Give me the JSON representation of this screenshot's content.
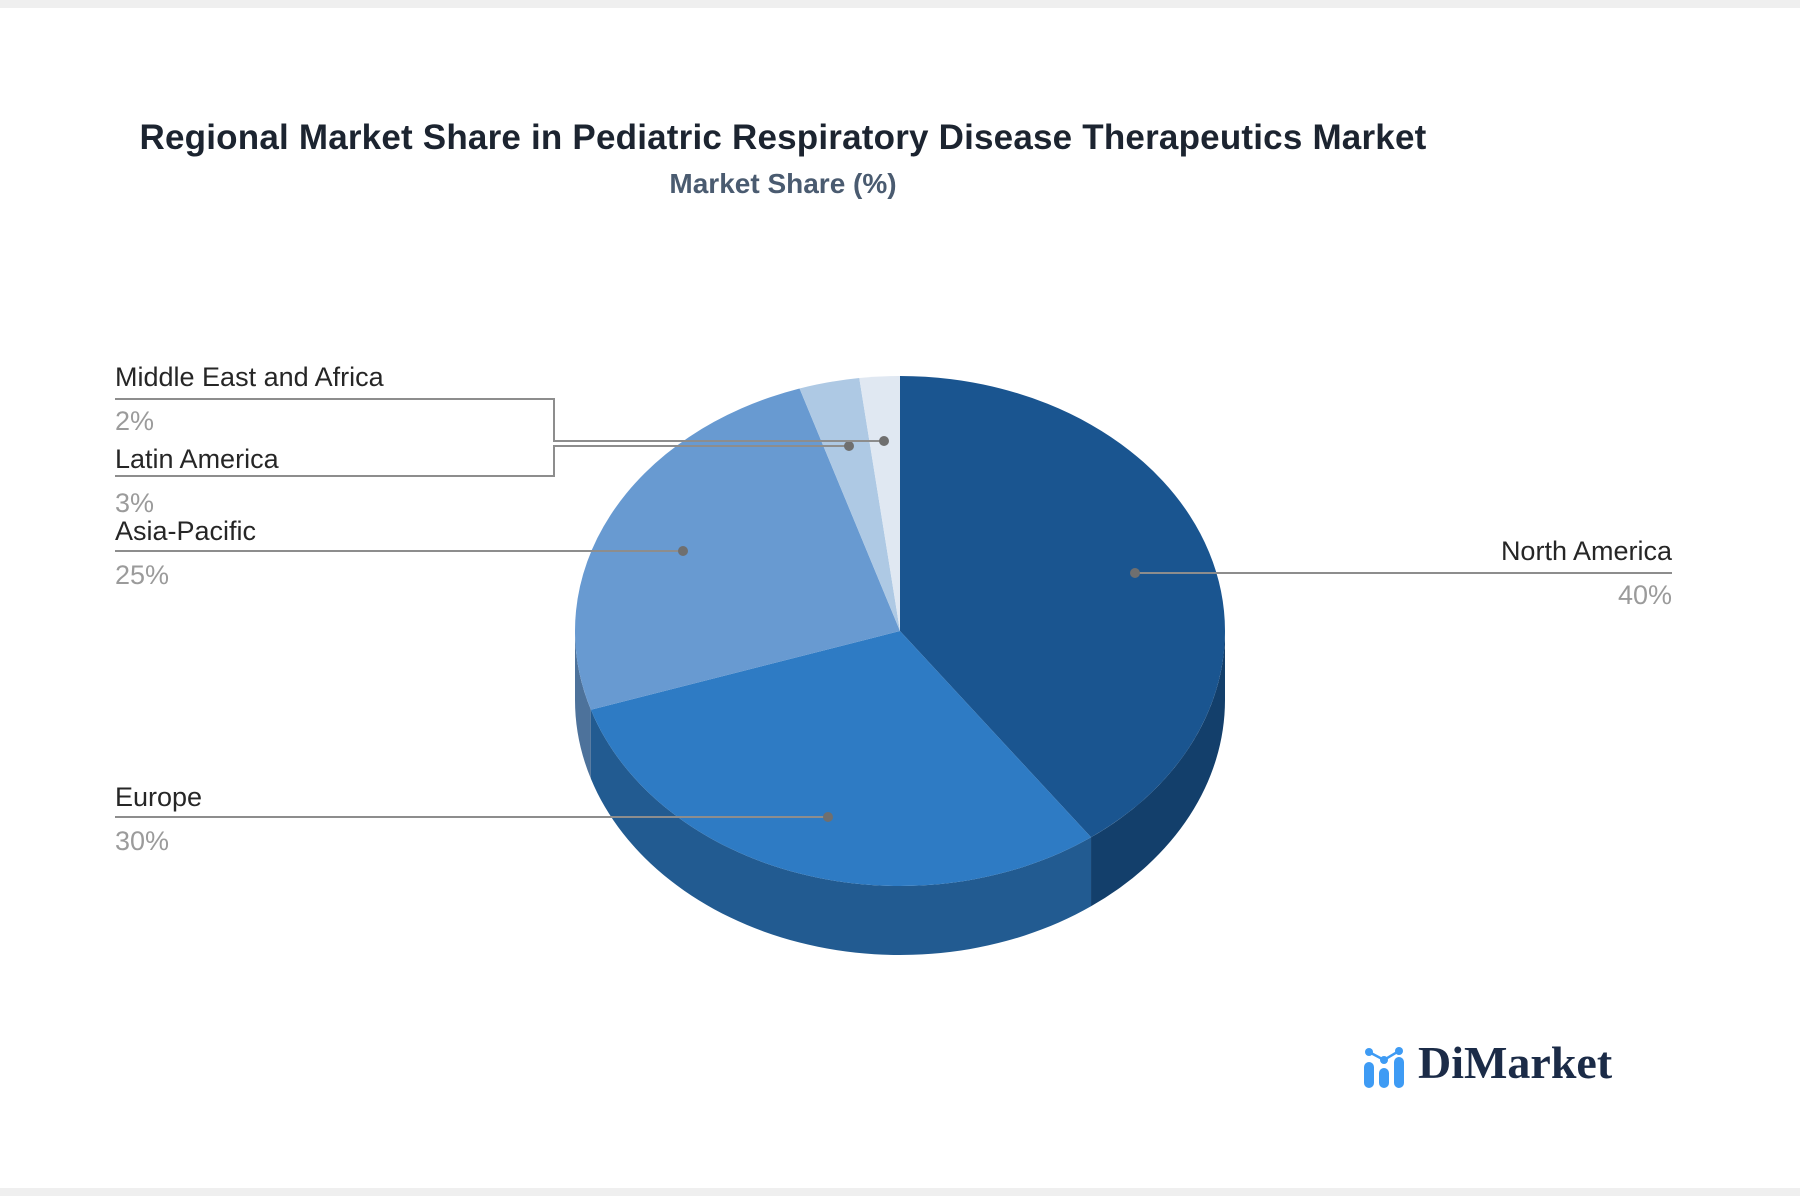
{
  "chart_data": {
    "type": "pie",
    "style": "3d-pie",
    "title": "Regional Market Share in Pediatric Respiratory Disease Therapeutics Market",
    "subtitle": "Market Share (%)",
    "unit": "%",
    "start_angle_deg": 0,
    "direction": "clockwise",
    "legend_position": "none",
    "slices": [
      {
        "label": "North America",
        "value": 40,
        "value_label": "40%",
        "color": "#1a5590"
      },
      {
        "label": "Europe",
        "value": 30,
        "value_label": "30%",
        "color": "#2e7bc4"
      },
      {
        "label": "Asia-Pacific",
        "value": 25,
        "value_label": "25%",
        "color": "#689ad1"
      },
      {
        "label": "Latin America",
        "value": 3,
        "value_label": "3%",
        "color": "#aec9e4"
      },
      {
        "label": "Middle East and Africa",
        "value": 2,
        "value_label": "2%",
        "color": "#e0e8f2"
      }
    ],
    "leader_line_color": "#8d8d8d",
    "leader_dot_color": "#6f6f6f",
    "label_name_color": "#262626",
    "label_value_color": "#9b9b9b",
    "title_color": "#1c2430",
    "subtitle_color": "#4a5b70"
  },
  "logo": {
    "name": "DiMarket",
    "icon": "bar-line-chart-icon",
    "text_color": "#1b2b47",
    "icon_color": "#3e9bf4"
  }
}
